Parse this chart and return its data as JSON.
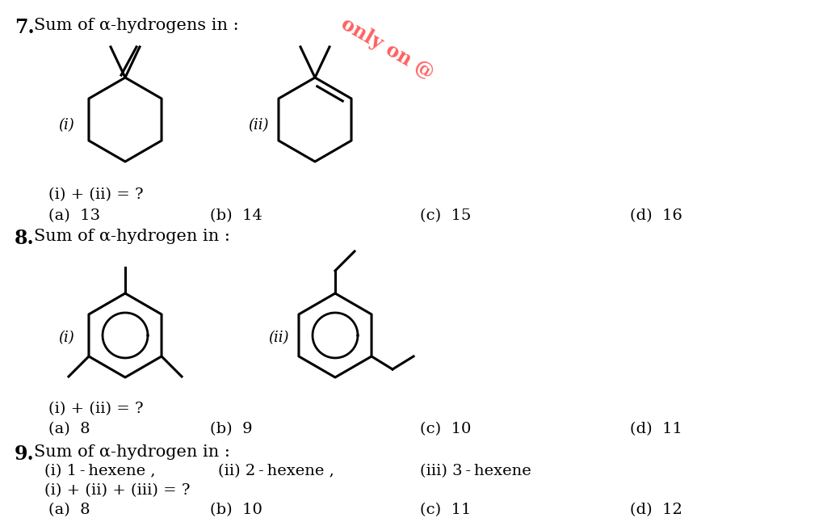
{
  "background_color": "#ffffff",
  "watermark_text": "only on @",
  "watermark_color": "#ff4444",
  "watermark_alpha": 0.85,
  "q7": {
    "number": "7.",
    "text": "Sum of α-hydrogens in :",
    "sub_i_label": "(i)",
    "sub_ii_label": "(ii)",
    "question": "(i) + (ii) = ?",
    "options": [
      {
        "label": "(a)",
        "value": "13"
      },
      {
        "label": "(b)",
        "value": "14"
      },
      {
        "label": "(c)",
        "value": "15"
      },
      {
        "label": "(d)",
        "value": "16"
      }
    ]
  },
  "q8": {
    "number": "8.",
    "text": "Sum of α-hydrogen in :",
    "sub_i_label": "(i)",
    "sub_ii_label": "(ii)",
    "question": "(i) + (ii) = ?",
    "options": [
      {
        "label": "(a)",
        "value": "8"
      },
      {
        "label": "(b)",
        "value": "9"
      },
      {
        "label": "(c)",
        "value": "10"
      },
      {
        "label": "(d)",
        "value": "11"
      }
    ]
  },
  "q9": {
    "number": "9.",
    "text": "Sum of α-hydrogen in :",
    "sub_item_i": "(i) 1 - hexene ,",
    "sub_item_ii": "(ii) 2 - hexene ,",
    "sub_item_iii": "(iii) 3 - hexene",
    "question": "(i) + (ii) + (iii) = ?",
    "options": [
      {
        "label": "(a)",
        "value": "8"
      },
      {
        "label": "(b)",
        "value": "10"
      },
      {
        "label": "(c)",
        "value": "11"
      },
      {
        "label": "(d)",
        "value": "12"
      }
    ]
  }
}
